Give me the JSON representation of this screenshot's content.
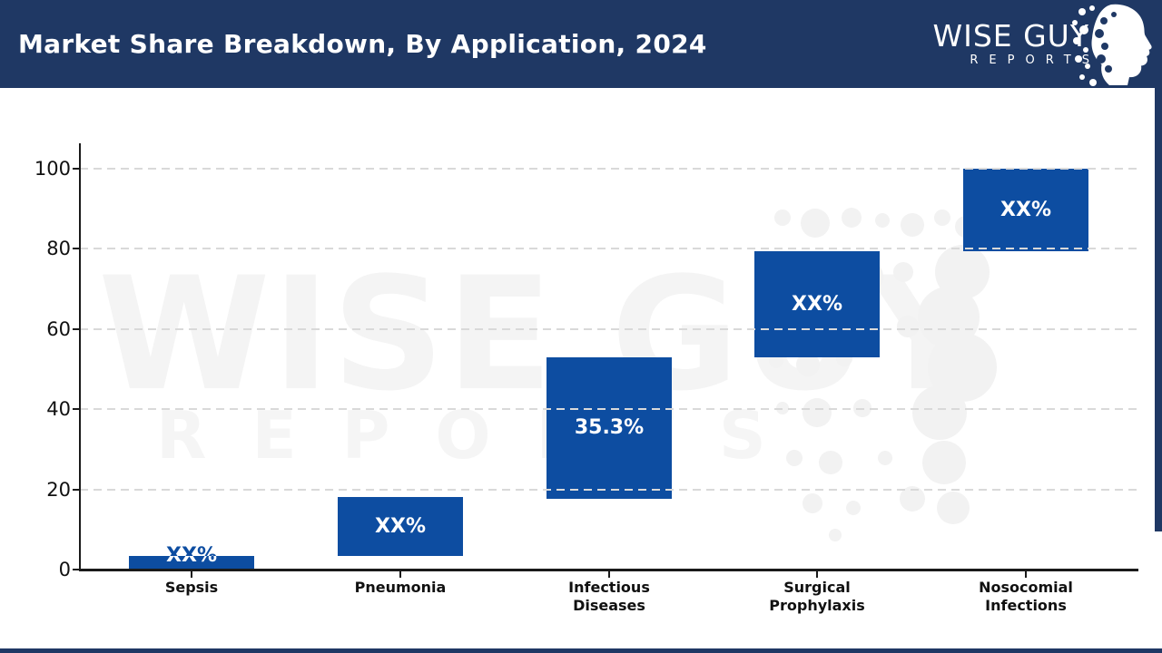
{
  "header": {
    "title": "Market Share Breakdown, By Application, 2024",
    "logo": {
      "line1": "WISE GUY",
      "line2": "REPORTS"
    }
  },
  "watermark": {
    "line1": "WISE GUY",
    "line2": "REPORTS"
  },
  "colors": {
    "header_navy": "#1f3864",
    "bar_blue": "#0d4da1",
    "gridline_gray": "#d9d9d9",
    "axis_black": "#1a1a1a",
    "watermark_gray": "#f4f4f4"
  },
  "chart_data": {
    "type": "bar",
    "subtype": "waterfall",
    "title": "Market Share Breakdown, By Application, 2024",
    "categories": [
      "Sepsis",
      "Pneumonia",
      "Infectious Diseases",
      "Surgical Prophylaxis",
      "Nosocomial Infections"
    ],
    "bars": [
      {
        "category": "Sepsis",
        "category_lines": [
          "Sepsis"
        ],
        "start": 0,
        "end": 3.4,
        "value": 3.4,
        "label": "XX%",
        "label_position": "top"
      },
      {
        "category": "Pneumonia",
        "category_lines": [
          "Pneumonia"
        ],
        "start": 3.4,
        "end": 18.1,
        "value": 14.7,
        "label": "XX%",
        "label_position": "center"
      },
      {
        "category": "Infectious Diseases",
        "category_lines": [
          "Infectious",
          "Diseases"
        ],
        "start": 17.7,
        "end": 53.0,
        "value": 35.3,
        "label": "35.3%",
        "label_position": "center"
      },
      {
        "category": "Surgical Prophylaxis",
        "category_lines": [
          "Surgical",
          "Prophylaxis"
        ],
        "start": 53.0,
        "end": 79.3,
        "value": 26.3,
        "label": "XX%",
        "label_position": "center"
      },
      {
        "category": "Nosocomial Infections",
        "category_lines": [
          "Nosocomial",
          "Infections"
        ],
        "start": 79.5,
        "end": 100,
        "value": 20.5,
        "label": "XX%",
        "label_position": "center"
      }
    ],
    "yticks": [
      0,
      20,
      40,
      60,
      80,
      100
    ],
    "ylim": [
      0,
      106
    ],
    "grid": "horizontal-dashed",
    "legend": false,
    "bar_color": "#0d4da1"
  }
}
